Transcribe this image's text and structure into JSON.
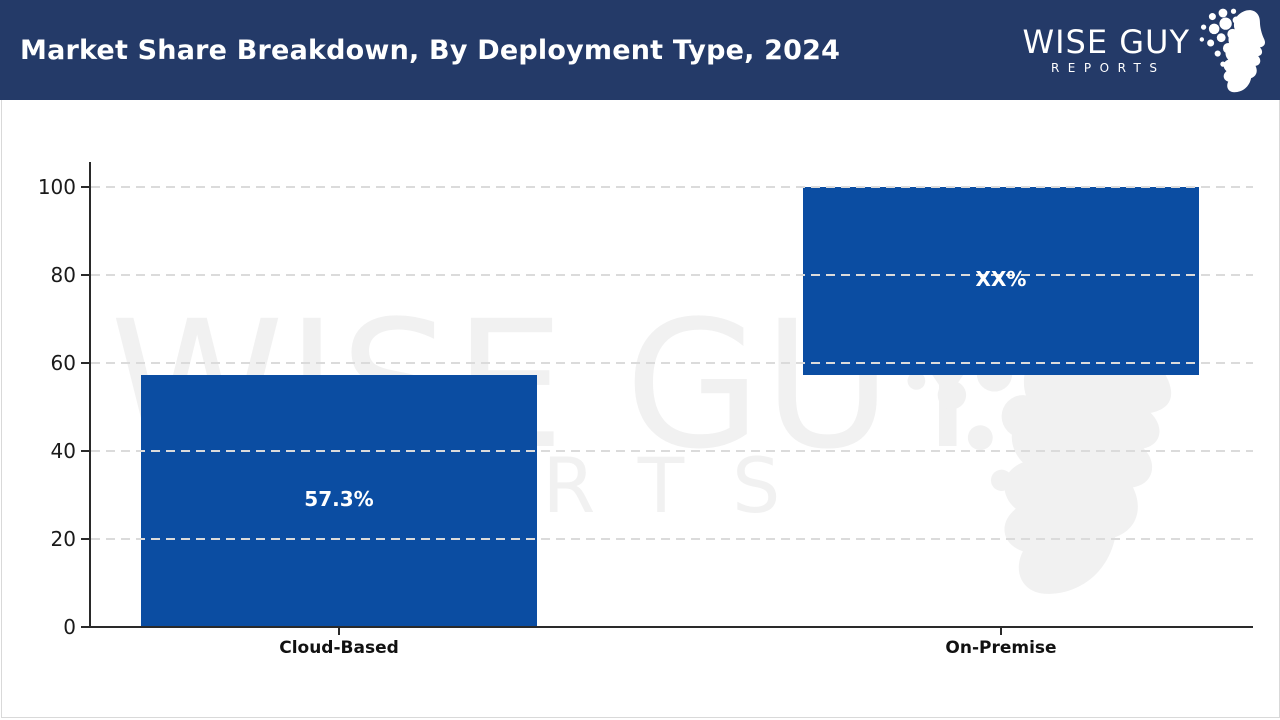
{
  "header": {
    "title": "Market Share Breakdown, By Deployment Type, 2024",
    "brand": {
      "name": "WISE GUY",
      "subtitle": "REPORTS",
      "icon": "dotted-face-profile-icon",
      "bg_color": "#243A68"
    }
  },
  "chart_data": {
    "type": "bar",
    "subtype": "stacked-breakdown-floating-bars",
    "title": "Market Share Breakdown, By Deployment Type, 2024",
    "categories": [
      "Cloud-Based",
      "On-Premise"
    ],
    "bars": [
      {
        "category": "Cloud-Based",
        "start": 0,
        "end": 57.3,
        "value": 57.3,
        "label": "57.3%"
      },
      {
        "category": "On-Premise",
        "start": 57.3,
        "end": 100,
        "value": 42.7,
        "label": "XX%"
      }
    ],
    "y_ticks": [
      0,
      20,
      40,
      60,
      80,
      100
    ],
    "y_tick_labels": [
      "0",
      "20",
      "40",
      "60",
      "80",
      "100"
    ],
    "ylim": [
      0,
      106
    ],
    "xlabel": "",
    "ylabel": "",
    "grid": "horizontal-dashed",
    "legend": "none",
    "bar_color": "#0B4DA2",
    "bar_label_color": "#FFFFFF",
    "watermark_text": "WISE GUY REPORTS"
  }
}
